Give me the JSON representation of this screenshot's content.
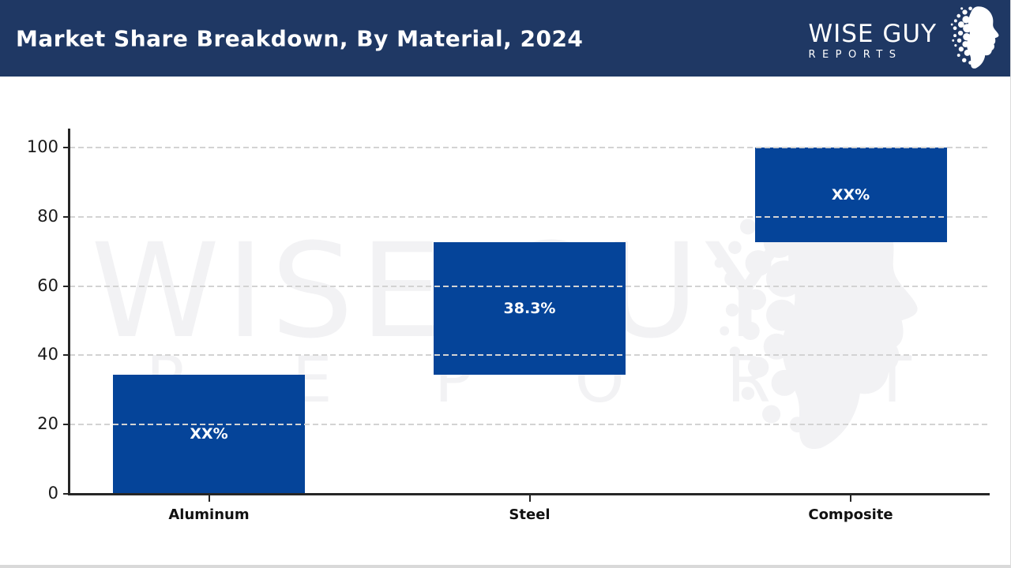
{
  "header": {
    "title": "Market Share Breakdown, By Material, 2024",
    "brand": {
      "name_line": "WISE GUY",
      "sub_line": "REPORTS"
    }
  },
  "watermark": {
    "name_line": "WISE GUY",
    "sub_line": "R E P O R T S"
  },
  "colors": {
    "header_bg": "#1f3864",
    "bar": "#054499",
    "grid": "#d3d3d3",
    "axis": "#262626",
    "bar_label": "#ffffff",
    "watermark": "#f2f2f4",
    "footer_strip": "#d9d9d9"
  },
  "chart_data": {
    "type": "waterfall",
    "title": "Market Share Breakdown, By Material, 2024",
    "categories": [
      "Aluminum",
      "Steel",
      "Composite"
    ],
    "bars": [
      {
        "category": "Aluminum",
        "base": 0,
        "value": 34.4,
        "label": "XX%"
      },
      {
        "category": "Steel",
        "base": 34.4,
        "value": 38.3,
        "label": "38.3%"
      },
      {
        "category": "Composite",
        "base": 72.7,
        "value": 27.3,
        "label": "XX%"
      }
    ],
    "xlabel": "",
    "ylabel": "",
    "ylim": [
      0,
      105
    ],
    "yticks": [
      0,
      20,
      40,
      60,
      80,
      100
    ],
    "grid": "horizontal-dashed",
    "legend": "none",
    "bar_color": "#054499",
    "label_color": "#ffffff"
  }
}
